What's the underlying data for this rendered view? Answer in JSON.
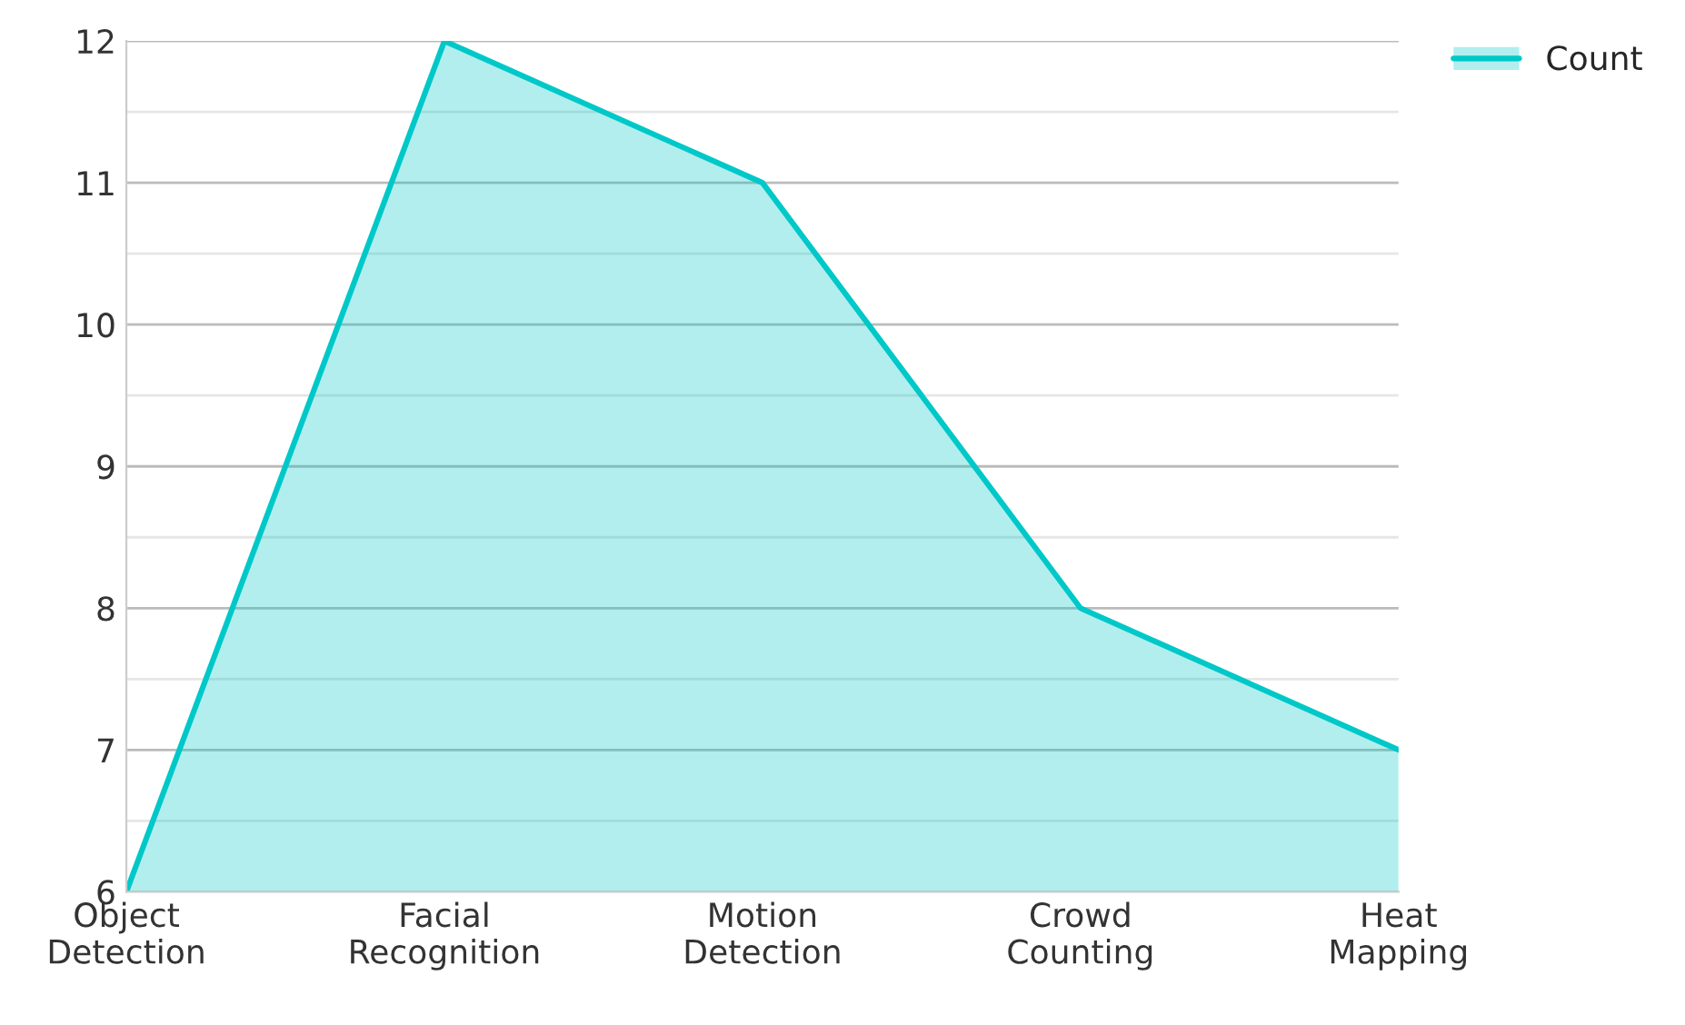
{
  "chart_data": {
    "type": "area",
    "categories": [
      "Object Detection",
      "Facial Recognition",
      "Motion Detection",
      "Crowd Counting",
      "Heat Mapping"
    ],
    "series": [
      {
        "name": "Count",
        "color": "#00c8c8",
        "values": [
          6,
          12,
          11,
          8,
          7
        ]
      }
    ],
    "ylim": [
      6,
      12
    ],
    "yticks": [
      6,
      {
        "value": 6.5,
        "label": null
      },
      7,
      {
        "value": 7.5,
        "label": null
      },
      8,
      {
        "value": 8.5,
        "label": null
      },
      9,
      {
        "value": 9.5,
        "label": null
      },
      10,
      {
        "value": 10.5,
        "label": null
      },
      11,
      {
        "value": 11.5,
        "label": null
      },
      12
    ],
    "grid": "y",
    "legend": "top right"
  }
}
